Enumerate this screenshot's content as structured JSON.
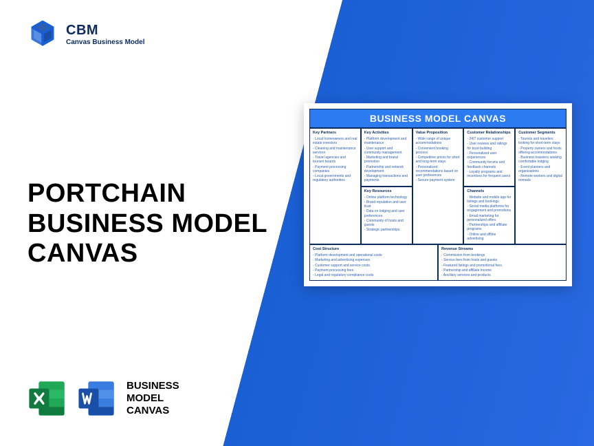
{
  "colors": {
    "brand_dark": "#0b2b5e",
    "brand_blue": "#2d7bf0",
    "gradient_start": "#1a5fd4",
    "gradient_end": "#2968e0",
    "text_black": "#000000",
    "canvas_text": "#2d5fb0",
    "excel_green_dark": "#0f7b3e",
    "excel_green_light": "#1fa855",
    "word_blue_dark": "#1a4fa8",
    "word_blue_light": "#3a7de0"
  },
  "logo": {
    "title": "CBM",
    "subtitle": "Canvas Business Model"
  },
  "main_title": {
    "line1": "PORTCHAIN",
    "line2": "BUSINESS MODEL",
    "line3": "CANVAS"
  },
  "bottom": {
    "line1": "BUSINESS",
    "line2": "MODEL",
    "line3": "CANVAS"
  },
  "canvas": {
    "header": "BUSINESS MODEL CANVAS",
    "cells": {
      "key_partners": {
        "title": "Key Partners",
        "items": [
          "Local homeowners and real estate investors",
          "Cleaning and maintenance services",
          "Travel agencies and tourism boards",
          "Payment processing companies",
          "Local governments and regulatory authorities"
        ]
      },
      "key_activities": {
        "title": "Key Activities",
        "items": [
          "Platform development and maintenance",
          "User support and community management",
          "Marketing and brand promotion",
          "Partnership and network development",
          "Managing transactions and payments"
        ]
      },
      "key_resources": {
        "title": "Key Resources",
        "items": [
          "Online platform technology",
          "Brand reputation and user trust",
          "Data on lodging and user preferences",
          "Community of hosts and guests",
          "Strategic partnerships"
        ]
      },
      "value_proposition": {
        "title": "Value Proposition",
        "items": [
          "Wide range of unique accommodations",
          "Convenient booking process",
          "Competitive prices for short and long-term stays",
          "Personalized recommendations based on user preferences",
          "Secure payment system"
        ]
      },
      "customer_relationships": {
        "title": "Customer Relationships",
        "items": [
          "24/7 customer support",
          "User reviews and ratings for trust-building",
          "Personalized user experiences",
          "Community forums and feedback channels",
          "Loyalty programs and incentives for frequent users"
        ]
      },
      "channels": {
        "title": "Channels",
        "items": [
          "Website and mobile app for listings and bookings",
          "Social media platforms for engagement and promotions",
          "Email marketing for personalized offers",
          "Partnerships and affiliate programs",
          "Online and offline advertising"
        ]
      },
      "customer_segments": {
        "title": "Customer Segments",
        "items": [
          "Tourists and travelers looking for short-term stays",
          "Property owners and hosts offering accommodations",
          "Business travelers seeking comfortable lodging",
          "Event planners and organizations",
          "Remote workers and digital nomads"
        ]
      },
      "cost_structure": {
        "title": "Cost Structure",
        "items": [
          "Platform development and operational costs",
          "Marketing and advertising expenses",
          "Customer support and service costs",
          "Payment processing fees",
          "Legal and regulatory compliance costs"
        ]
      },
      "revenue_streams": {
        "title": "Revenue Streams",
        "items": [
          "Commission from bookings",
          "Service fees from hosts and guests",
          "Featured listings and promotional fees",
          "Partnership and affiliate income",
          "Ancillary services and products"
        ]
      }
    }
  }
}
